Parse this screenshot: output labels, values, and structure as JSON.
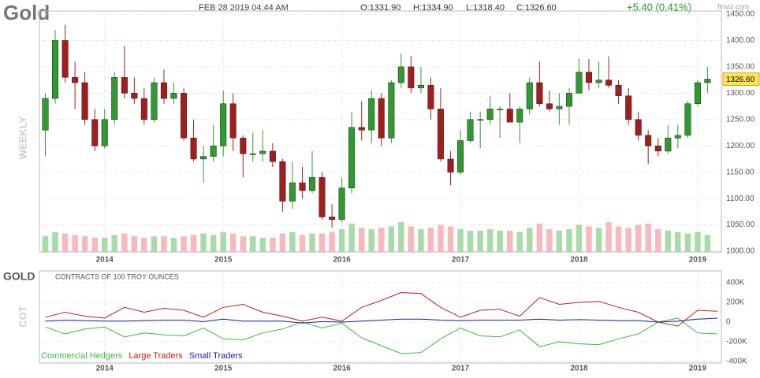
{
  "header": {
    "title": "Gold",
    "date": "FEB 28 2019 04:44 AM",
    "open": "O:1331.90",
    "high": "H:1334.90",
    "low": "L:1318.40",
    "close": "C:1326.60",
    "change": "+5.40 (0.41%)",
    "brand": "finviz.com"
  },
  "chart_data": [
    {
      "type": "candlestick",
      "ylabel": "WEEKLY",
      "xlim": [
        2013.45,
        2019.2
      ],
      "xticks": [
        2014,
        2015,
        2016,
        2017,
        2018,
        2019
      ],
      "ylim": [
        1000,
        1450
      ],
      "yticks": [
        {
          "value": 1000,
          "label": "1000.00"
        },
        {
          "value": 1050,
          "label": "1050.00"
        },
        {
          "value": 1100,
          "label": "1100.00"
        },
        {
          "value": 1150,
          "label": "1150.00"
        },
        {
          "value": 1200,
          "label": "1200.00"
        },
        {
          "value": 1250,
          "label": "1250.00"
        },
        {
          "value": 1300,
          "label": "1300.00"
        },
        {
          "value": 1350,
          "label": "1350.00"
        },
        {
          "value": 1400,
          "label": "1400.00"
        },
        {
          "value": 1450,
          "label": "1450.00"
        }
      ],
      "grid": true,
      "up_color": "#2f9a2f",
      "down_color": "#a31d1d",
      "volume_up_color": "#a9dba9",
      "volume_down_color": "#f7b9bd",
      "last_price": {
        "value": 1326.6,
        "label": "1326.60"
      },
      "x": [
        2013.5,
        2013.583,
        2013.667,
        2013.75,
        2013.833,
        2013.917,
        2014,
        2014.083,
        2014.167,
        2014.25,
        2014.333,
        2014.417,
        2014.5,
        2014.583,
        2014.667,
        2014.75,
        2014.833,
        2014.917,
        2015,
        2015.083,
        2015.167,
        2015.25,
        2015.333,
        2015.417,
        2015.5,
        2015.583,
        2015.667,
        2015.75,
        2015.833,
        2015.917,
        2016,
        2016.083,
        2016.167,
        2016.25,
        2016.333,
        2016.417,
        2016.5,
        2016.583,
        2016.667,
        2016.75,
        2016.833,
        2016.917,
        2017,
        2017.083,
        2017.167,
        2017.25,
        2017.333,
        2017.417,
        2017.5,
        2017.583,
        2017.667,
        2017.75,
        2017.833,
        2017.917,
        2018,
        2018.083,
        2018.167,
        2018.25,
        2018.333,
        2018.417,
        2018.5,
        2018.583,
        2018.667,
        2018.75,
        2018.833,
        2018.917,
        2019,
        2019.083
      ],
      "open": [
        1230,
        1290,
        1400,
        1330,
        1320,
        1250,
        1200,
        1250,
        1330,
        1300,
        1290,
        1250,
        1320,
        1290,
        1300,
        1215,
        1175,
        1180,
        1200,
        1280,
        1215,
        1185,
        1185,
        1190,
        1170,
        1095,
        1130,
        1115,
        1140,
        1065,
        1060,
        1120,
        1235,
        1230,
        1290,
        1215,
        1320,
        1350,
        1310,
        1315,
        1270,
        1175,
        1150,
        1210,
        1250,
        1250,
        1270,
        1270,
        1245,
        1270,
        1320,
        1280,
        1270,
        1275,
        1300,
        1340,
        1320,
        1325,
        1315,
        1295,
        1250,
        1220,
        1200,
        1190,
        1215,
        1220,
        1280,
        1320
      ],
      "high": [
        1300,
        1420,
        1430,
        1360,
        1340,
        1270,
        1270,
        1340,
        1390,
        1330,
        1310,
        1330,
        1345,
        1320,
        1310,
        1250,
        1200,
        1240,
        1305,
        1300,
        1220,
        1225,
        1230,
        1205,
        1175,
        1170,
        1160,
        1190,
        1150,
        1090,
        1140,
        1265,
        1285,
        1305,
        1300,
        1325,
        1375,
        1370,
        1350,
        1330,
        1310,
        1190,
        1230,
        1265,
        1265,
        1295,
        1275,
        1300,
        1275,
        1330,
        1360,
        1305,
        1300,
        1310,
        1365,
        1365,
        1360,
        1370,
        1325,
        1310,
        1265,
        1230,
        1215,
        1240,
        1240,
        1285,
        1325,
        1350
      ],
      "low": [
        1180,
        1280,
        1320,
        1270,
        1240,
        1190,
        1195,
        1240,
        1290,
        1280,
        1240,
        1245,
        1280,
        1280,
        1210,
        1170,
        1130,
        1170,
        1180,
        1190,
        1140,
        1170,
        1170,
        1160,
        1075,
        1080,
        1100,
        1110,
        1060,
        1045,
        1055,
        1110,
        1210,
        1205,
        1200,
        1205,
        1310,
        1300,
        1300,
        1250,
        1170,
        1125,
        1145,
        1205,
        1195,
        1240,
        1215,
        1245,
        1205,
        1260,
        1275,
        1265,
        1240,
        1240,
        1300,
        1305,
        1310,
        1310,
        1280,
        1240,
        1210,
        1165,
        1180,
        1185,
        1195,
        1215,
        1275,
        1300
      ],
      "close": [
        1290,
        1400,
        1330,
        1320,
        1250,
        1200,
        1250,
        1330,
        1300,
        1290,
        1250,
        1320,
        1290,
        1300,
        1215,
        1175,
        1180,
        1200,
        1280,
        1215,
        1185,
        1185,
        1190,
        1170,
        1095,
        1130,
        1115,
        1140,
        1065,
        1060,
        1120,
        1235,
        1230,
        1290,
        1215,
        1320,
        1350,
        1310,
        1315,
        1270,
        1175,
        1150,
        1210,
        1250,
        1250,
        1270,
        1270,
        1245,
        1270,
        1320,
        1280,
        1270,
        1275,
        1300,
        1340,
        1320,
        1325,
        1315,
        1295,
        1250,
        1220,
        1200,
        1190,
        1215,
        1220,
        1280,
        1320,
        1326.6
      ],
      "volume": [
        22,
        28,
        26,
        24,
        22,
        20,
        20,
        24,
        26,
        22,
        20,
        22,
        22,
        20,
        22,
        24,
        26,
        24,
        28,
        26,
        22,
        22,
        20,
        20,
        26,
        28,
        24,
        26,
        26,
        28,
        32,
        40,
        34,
        32,
        34,
        36,
        42,
        36,
        32,
        34,
        38,
        36,
        32,
        30,
        30,
        32,
        30,
        30,
        28,
        34,
        40,
        32,
        30,
        32,
        38,
        36,
        34,
        42,
        36,
        34,
        38,
        40,
        32,
        30,
        28,
        26,
        28,
        24
      ]
    },
    {
      "type": "line",
      "title": "GOLD",
      "subtitle": "CONTRACTS OF 100 TROY OUNCES",
      "ylabel": "COT",
      "xlim": [
        2013.45,
        2019.2
      ],
      "xticks": [
        2014,
        2015,
        2016,
        2017,
        2018,
        2019
      ],
      "ylim": [
        -400000,
        400000
      ],
      "yticks": [
        {
          "value": -400000,
          "label": "-400K"
        },
        {
          "value": -200000,
          "label": "-200K"
        },
        0,
        {
          "value": 200000,
          "label": "200K"
        },
        {
          "value": 400000,
          "label": "400K"
        }
      ],
      "grid": true,
      "x": [
        2013.5,
        2013.667,
        2013.833,
        2014,
        2014.167,
        2014.333,
        2014.5,
        2014.667,
        2014.833,
        2015,
        2015.167,
        2015.333,
        2015.5,
        2015.667,
        2015.833,
        2016,
        2016.167,
        2016.333,
        2016.5,
        2016.667,
        2016.833,
        2017,
        2017.167,
        2017.333,
        2017.5,
        2017.667,
        2017.833,
        2018,
        2018.167,
        2018.333,
        2018.5,
        2018.667,
        2018.833,
        2019,
        2019.167
      ],
      "series": [
        {
          "name": "Commercial Hedgers",
          "color": "#3cb83c",
          "values": [
            -50000,
            -120000,
            -70000,
            -50000,
            -150000,
            -110000,
            -130000,
            -140000,
            -60000,
            -170000,
            -180000,
            -110000,
            -70000,
            0,
            -60000,
            -10000,
            -160000,
            -240000,
            -320000,
            -310000,
            -170000,
            -60000,
            -140000,
            -150000,
            -80000,
            -250000,
            -200000,
            -220000,
            -230000,
            -170000,
            -120000,
            0,
            40000,
            -110000,
            -120000
          ]
        },
        {
          "name": "Large Traders",
          "color": "#b82020",
          "values": [
            50000,
            100000,
            60000,
            40000,
            150000,
            100000,
            140000,
            120000,
            50000,
            150000,
            180000,
            100000,
            60000,
            10000,
            50000,
            10000,
            150000,
            220000,
            300000,
            290000,
            150000,
            50000,
            120000,
            130000,
            60000,
            250000,
            180000,
            200000,
            210000,
            150000,
            100000,
            0,
            -40000,
            120000,
            110000
          ]
        },
        {
          "name": "Small Traders",
          "color": "#1c1c9c",
          "values": [
            10000,
            20000,
            15000,
            10000,
            10000,
            15000,
            20000,
            20000,
            5000,
            30000,
            10000,
            10000,
            10000,
            -10000,
            5000,
            0,
            10000,
            20000,
            30000,
            30000,
            20000,
            15000,
            20000,
            20000,
            20000,
            30000,
            20000,
            25000,
            20000,
            15000,
            15000,
            0,
            10000,
            30000,
            40000
          ]
        }
      ]
    }
  ]
}
